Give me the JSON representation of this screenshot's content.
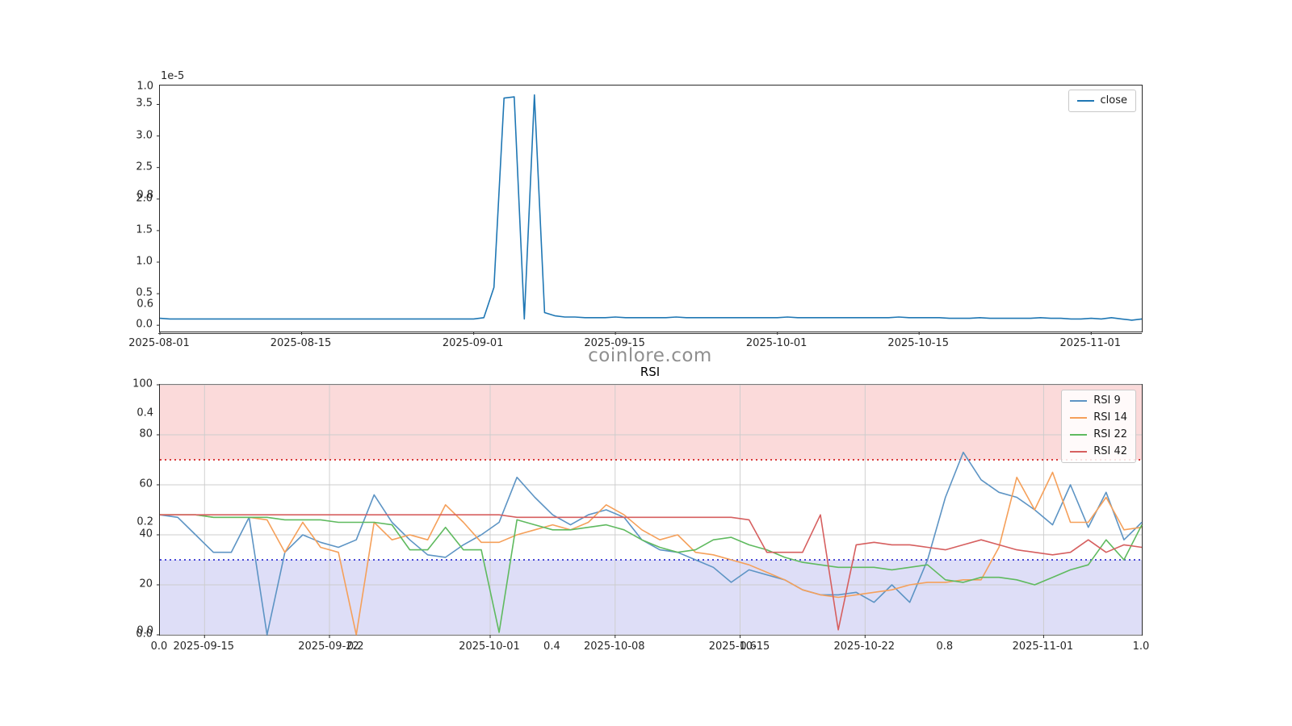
{
  "watermark": "coinlore.com",
  "colors": {
    "close": "#1f77b4",
    "rsi9": "#5d94c4",
    "rsi14": "#f5a05a",
    "rsi22": "#5fba5f",
    "rsi42": "#d65f5f",
    "overbought_band": "#fbdada",
    "oversold_band": "#dedef7",
    "overbought_line": "#cc0000",
    "oversold_line": "#1111cc",
    "grid": "#cccccc"
  },
  "ghost_axis": {
    "y_labels": [
      "1.0",
      "0.8",
      "0.6",
      "0.4",
      "0.2",
      "0.0"
    ],
    "x_labels": [
      "0.0",
      "0.2",
      "0.4",
      "0.6",
      "0.8",
      "1.0"
    ]
  },
  "chart_data": [
    {
      "type": "line",
      "title": "",
      "legend": [
        "close"
      ],
      "y_offset_label": "1e-5",
      "x_tick_labels": [
        "2025-08-01",
        "2025-08-15",
        "2025-09-01",
        "2025-09-15",
        "2025-10-01",
        "2025-10-15",
        "2025-11-01"
      ],
      "x_tick_pos": [
        0,
        14,
        31,
        45,
        61,
        75,
        92
      ],
      "x_range": [
        0,
        97
      ],
      "y_ticks": [
        0,
        0.5,
        1,
        1.5,
        2,
        2.5,
        3,
        3.5
      ],
      "y_tick_labels": [
        "0.0",
        "0.5",
        "1.0",
        "1.5",
        "2.0",
        "2.5",
        "3.0",
        "3.5"
      ],
      "ylim": [
        -0.1,
        3.8
      ],
      "grid": false,
      "series": [
        {
          "name": "close",
          "color_key": "close",
          "values": [
            0.11,
            0.1,
            0.1,
            0.1,
            0.1,
            0.1,
            0.1,
            0.1,
            0.1,
            0.1,
            0.1,
            0.1,
            0.1,
            0.1,
            0.1,
            0.1,
            0.1,
            0.1,
            0.1,
            0.1,
            0.1,
            0.1,
            0.1,
            0.1,
            0.1,
            0.1,
            0.1,
            0.1,
            0.1,
            0.1,
            0.1,
            0.1,
            0.12,
            0.6,
            3.6,
            3.62,
            0.1,
            3.65,
            0.2,
            0.15,
            0.13,
            0.13,
            0.12,
            0.12,
            0.12,
            0.13,
            0.12,
            0.12,
            0.12,
            0.12,
            0.12,
            0.13,
            0.12,
            0.12,
            0.12,
            0.12,
            0.12,
            0.12,
            0.12,
            0.12,
            0.12,
            0.12,
            0.13,
            0.12,
            0.12,
            0.12,
            0.12,
            0.12,
            0.12,
            0.12,
            0.12,
            0.12,
            0.12,
            0.13,
            0.12,
            0.12,
            0.12,
            0.12,
            0.11,
            0.11,
            0.11,
            0.12,
            0.11,
            0.11,
            0.11,
            0.11,
            0.11,
            0.12,
            0.11,
            0.11,
            0.1,
            0.1,
            0.11,
            0.1,
            0.12,
            0.1,
            0.08,
            0.1
          ]
        }
      ]
    },
    {
      "type": "line",
      "title": "RSI",
      "legend": [
        "RSI 9",
        "RSI 14",
        "RSI 22",
        "RSI 42"
      ],
      "x_tick_labels": [
        "2025-09-15",
        "2025-09-22",
        "2025-10-01",
        "2025-10-08",
        "2025-10-15",
        "2025-10-22",
        "2025-11-01"
      ],
      "x_tick_pos": [
        2.5,
        9.5,
        18.5,
        25.5,
        32.5,
        39.5,
        49.5
      ],
      "x_range": [
        0,
        55
      ],
      "y_ticks": [
        0,
        20,
        40,
        60,
        80,
        100
      ],
      "y_tick_labels": [
        "0.0",
        "20",
        "40",
        "60",
        "80",
        "100"
      ],
      "ylim": [
        0,
        100
      ],
      "grid": true,
      "bands": [
        {
          "from": 70,
          "to": 100,
          "color_key": "overbought_band"
        },
        {
          "from": 0,
          "to": 30,
          "color_key": "oversold_band"
        }
      ],
      "hlines": [
        {
          "y": 70,
          "color_key": "overbought_line"
        },
        {
          "y": 30,
          "color_key": "oversold_line"
        }
      ],
      "series": [
        {
          "name": "RSI 9",
          "color_key": "rsi9",
          "values": [
            48,
            47,
            40,
            33,
            33,
            47,
            0,
            33,
            40,
            37,
            35,
            38,
            56,
            45,
            38,
            32,
            31,
            36,
            40,
            45,
            63,
            55,
            48,
            44,
            48,
            50,
            47,
            38,
            34,
            33,
            30,
            27,
            21,
            26,
            24,
            22,
            18,
            16,
            16,
            17,
            13,
            20,
            13,
            30,
            55,
            73,
            62,
            57,
            55,
            50,
            44,
            60,
            43,
            57,
            38,
            45
          ]
        },
        {
          "name": "RSI 14",
          "color_key": "rsi14",
          "values": [
            48,
            48,
            48,
            47,
            47,
            47,
            46,
            33,
            45,
            35,
            33,
            0,
            45,
            38,
            40,
            38,
            52,
            45,
            37,
            37,
            40,
            42,
            44,
            42,
            45,
            52,
            48,
            42,
            38,
            40,
            33,
            32,
            30,
            28,
            25,
            22,
            18,
            16,
            15,
            16,
            17,
            18,
            20,
            21,
            21,
            22,
            22,
            35,
            63,
            50,
            65,
            45,
            45,
            55,
            42,
            43
          ]
        },
        {
          "name": "RSI 22",
          "color_key": "rsi22",
          "values": [
            48,
            48,
            48,
            47,
            47,
            47,
            47,
            46,
            46,
            46,
            45,
            45,
            45,
            44,
            34,
            34,
            43,
            34,
            34,
            1,
            46,
            44,
            42,
            42,
            43,
            44,
            42,
            38,
            35,
            33,
            34,
            38,
            39,
            36,
            34,
            31,
            29,
            28,
            27,
            27,
            27,
            26,
            27,
            28,
            22,
            21,
            23,
            23,
            22,
            20,
            23,
            26,
            28,
            38,
            30,
            44
          ]
        },
        {
          "name": "RSI 42",
          "color_key": "rsi42",
          "values": [
            48,
            48,
            48,
            48,
            48,
            48,
            48,
            48,
            48,
            48,
            48,
            48,
            48,
            48,
            48,
            48,
            48,
            48,
            48,
            48,
            47,
            47,
            47,
            47,
            47,
            47,
            47,
            47,
            47,
            47,
            47,
            47,
            47,
            46,
            33,
            33,
            33,
            48,
            2,
            36,
            37,
            36,
            36,
            35,
            34,
            36,
            38,
            36,
            34,
            33,
            32,
            33,
            38,
            33,
            36,
            35
          ]
        }
      ]
    }
  ]
}
